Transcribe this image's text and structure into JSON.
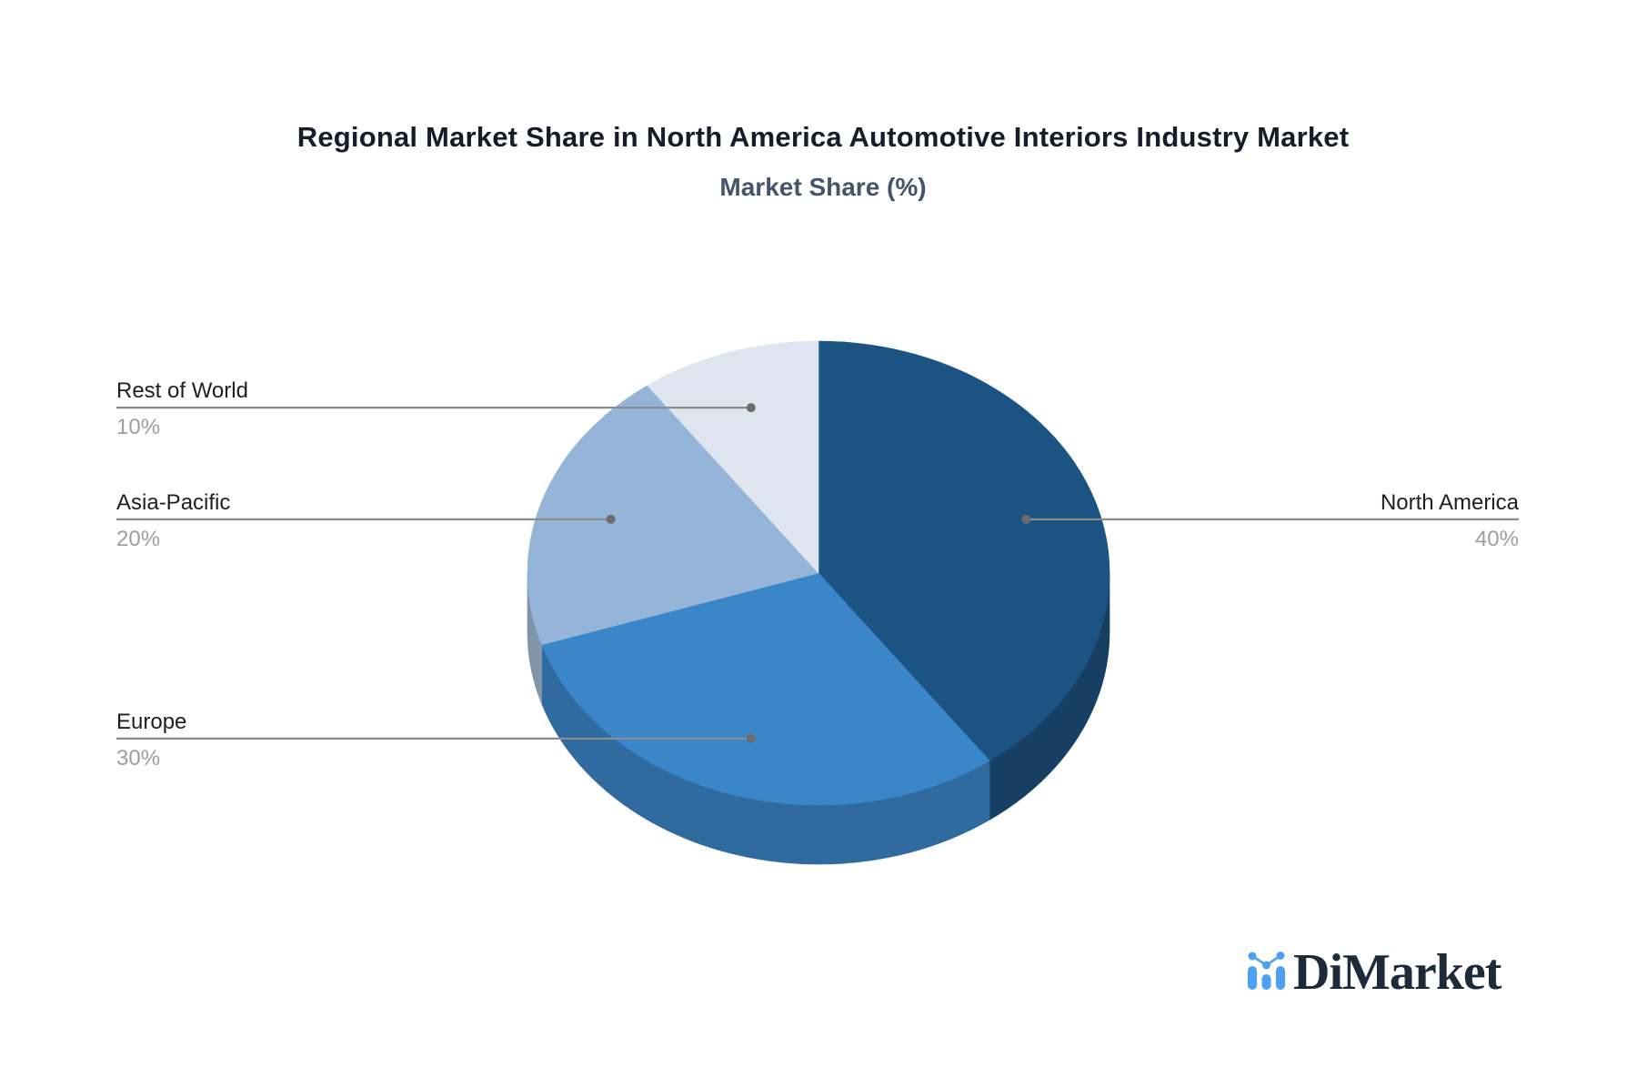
{
  "header": {
    "title": "Regional Market Share in North America Automotive Interiors Industry Market",
    "subtitle": "Market Share (%)"
  },
  "chart_data": {
    "type": "pie",
    "style_3d": true,
    "start_angle_deg": 0,
    "direction": "clockwise",
    "title": "Regional Market Share in North America Automotive Interiors Industry Market",
    "subtitle": "Market Share (%)",
    "unit": "%",
    "legend": false,
    "slices": [
      {
        "label": "North America",
        "value": 40,
        "pct_label": "40%",
        "color": "#1b5482",
        "side_color": "#173f63",
        "label_side": "right"
      },
      {
        "label": "Europe",
        "value": 30,
        "pct_label": "30%",
        "color": "#3a86c9",
        "side_color": "#2f6b9e",
        "label_side": "left"
      },
      {
        "label": "Asia-Pacific",
        "value": 20,
        "pct_label": "20%",
        "color": "#94b5d8",
        "side_color": "#8094aa",
        "label_side": "left"
      },
      {
        "label": "Rest of World",
        "value": 10,
        "pct_label": "10%",
        "color": "#dfe5ee",
        "side_color": "#c9d3e0",
        "label_side": "left"
      }
    ]
  },
  "branding": {
    "logo_text": "DiMarket",
    "icon": "bar-line-chart-icon",
    "icon_color": "#4ba2f0",
    "text_color": "#1c2a3a"
  },
  "style": {
    "background": "#ffffff",
    "leader_line_color": "#8c8c8c",
    "dot_color": "#6d6d6d",
    "title_color": "#171c28",
    "subtitle_color": "#44546a",
    "label_name_color": "#1f1f1f",
    "label_pct_color": "#9e9e9e"
  }
}
